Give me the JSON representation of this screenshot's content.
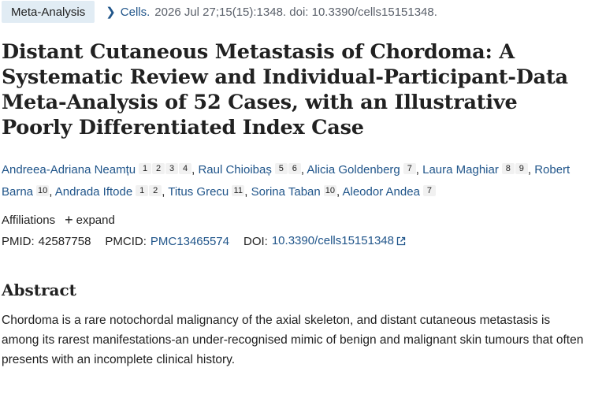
{
  "meta": {
    "article_type": "Meta-Analysis",
    "journal": "Cells.",
    "citation": "2026 Jul 27;15(15):1348. doi: 10.3390/cells15151348."
  },
  "title": "Distant Cutaneous Metastasis of Chordoma: A Systematic Review and Individual-Participant-Data Meta-Analysis of 52 Cases, with an Illustrative Poorly Differentiated Index Case",
  "authors": [
    {
      "name": "Andreea-Adriana Neamțu",
      "affils": [
        "1",
        "2",
        "3",
        "4"
      ]
    },
    {
      "name": "Raul Chioibaș",
      "affils": [
        "5",
        "6"
      ]
    },
    {
      "name": "Alicia Goldenberg",
      "affils": [
        "7"
      ]
    },
    {
      "name": "Laura Maghiar",
      "affils": [
        "8",
        "9"
      ]
    },
    {
      "name": "Robert Barna",
      "affils": [
        "10"
      ]
    },
    {
      "name": "Andrada Iftode",
      "affils": [
        "1",
        "2"
      ]
    },
    {
      "name": "Titus Grecu",
      "affils": [
        "11"
      ]
    },
    {
      "name": "Sorina Taban",
      "affils": [
        "10"
      ]
    },
    {
      "name": "Aleodor Andea",
      "affils": [
        "7"
      ]
    }
  ],
  "affiliations": {
    "label": "Affiliations",
    "expand_label": "expand"
  },
  "ids": {
    "pmid_label": "PMID:",
    "pmid": "42587758",
    "pmcid_label": "PMCID:",
    "pmcid": "PMC13465574",
    "doi_label": "DOI:",
    "doi": "10.3390/cells15151348"
  },
  "abstract": {
    "heading": "Abstract",
    "text": "Chordoma is a rare notochordal malignancy of the axial skeleton, and distant cutaneous metastasis is among its rarest manifestations-an under-recognised mimic of benign and malignant skin tumours that often presents with an incomplete clinical history."
  },
  "colors": {
    "link": "#20558a",
    "badge_bg": "#e1ecf4",
    "sup_bg": "#f1f1f1"
  },
  "icons": {
    "breadcrumb": "chevron-right-icon",
    "expand": "plus-icon",
    "external": "external-link-icon"
  }
}
